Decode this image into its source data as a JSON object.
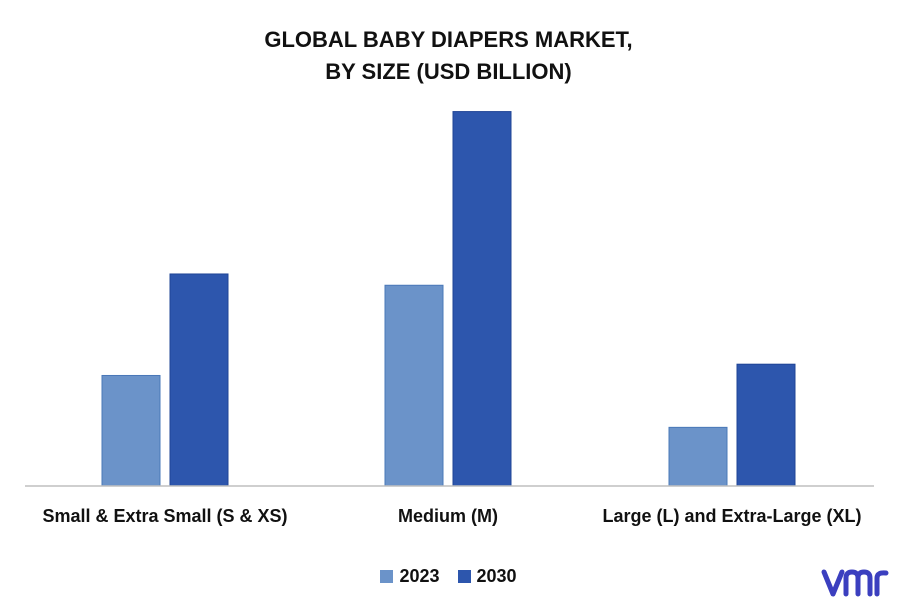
{
  "chart_data": {
    "type": "bar",
    "title_lines": [
      "GLOBAL BABY DIAPERS MARKET,",
      "BY SIZE (USD BILLION)"
    ],
    "categories": [
      "Small & Extra Small (S & XS)",
      "Medium (M)",
      "Large (L) and Extra-Large (XL)"
    ],
    "series": [
      {
        "name": "2023",
        "color": "#6b93c9",
        "values": [
          9.8,
          17.8,
          5.2
        ]
      },
      {
        "name": "2030",
        "color": "#2d56ad",
        "values": [
          18.8,
          33.2,
          10.8
        ]
      }
    ],
    "ylim": [
      0,
      36
    ],
    "grid": false,
    "legend_position": "bottom"
  },
  "logo": {
    "icon": "vmr-logo-icon",
    "color": "#3b3fbf"
  }
}
